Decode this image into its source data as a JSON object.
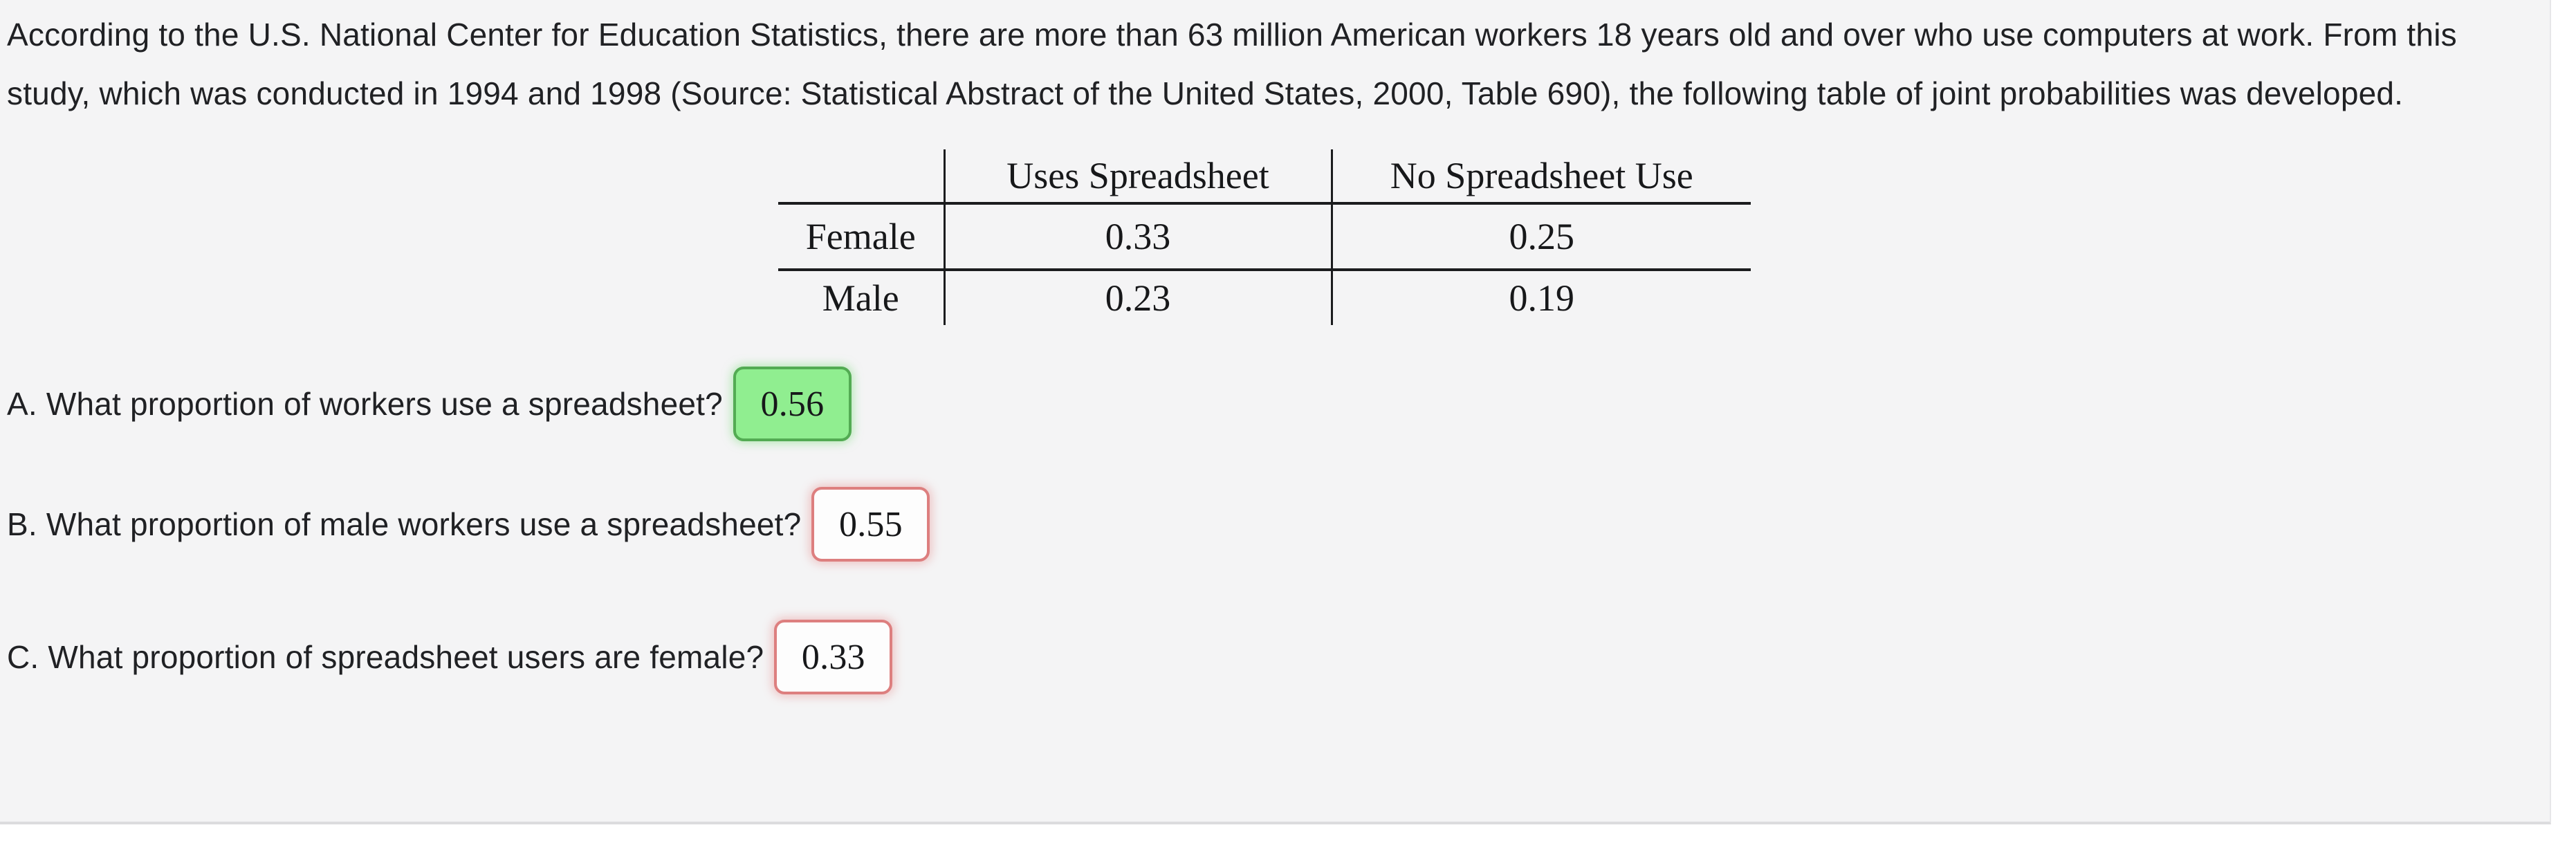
{
  "page": {
    "intro": "According to the U.S. National Center for Education Statistics, there are more than 63 million American workers 18 years old and over who use computers at work. From this study, which was conducted in 1994 and 1998 (Source: Statistical Abstract of the United States, 2000, Table 690), the following table of joint probabilities was developed."
  },
  "table": {
    "col_headers": [
      "Uses Spreadsheet",
      "No Spreadsheet Use"
    ],
    "rows": [
      {
        "label": "Female",
        "values": [
          "0.33",
          "0.25"
        ]
      },
      {
        "label": "Male",
        "values": [
          "0.23",
          "0.19"
        ]
      }
    ]
  },
  "questions": [
    {
      "label": "A. What proportion of workers use a spreadsheet?",
      "answer": "0.56",
      "status": "correct"
    },
    {
      "label": "B. What proportion of male workers use a spreadsheet?",
      "answer": "0.55",
      "status": "incorrect"
    },
    {
      "label": "C. What proportion of spreadsheet users are female?",
      "answer": "0.33",
      "status": "incorrect"
    }
  ],
  "colors": {
    "page_background": "#f4f4f5",
    "correct_fill": "#90ee90",
    "correct_border": "#53ab53",
    "incorrect_fill": "#fdfdfd",
    "incorrect_border": "#dd7f7f",
    "table_rule": "#1b1c1e"
  }
}
